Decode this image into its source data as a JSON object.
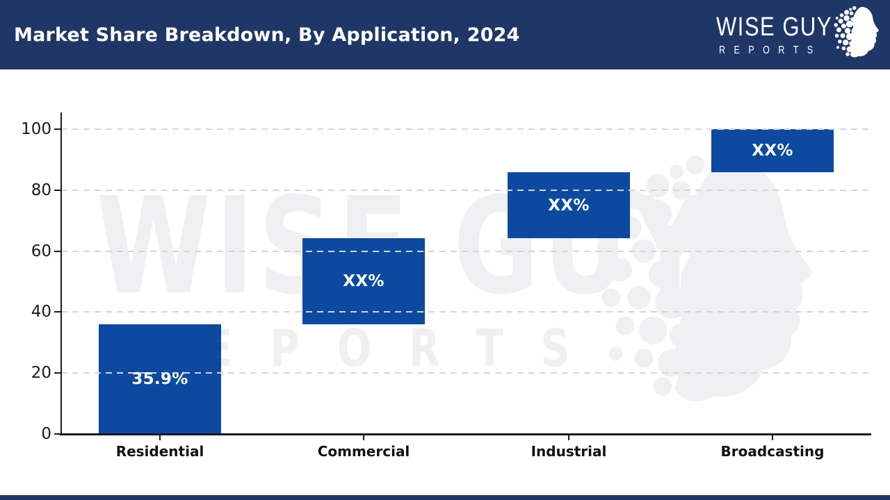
{
  "header": {
    "title": "Market Share Breakdown, By Application, 2024",
    "logo": {
      "wordmark": "WISE GUY",
      "subtitle": "REPORTS"
    }
  },
  "watermark": {
    "wordmark": "WISE GUY",
    "subtitle": "REPORTS"
  },
  "colors": {
    "header_bg": "#1f3766",
    "footer_bg": "#1f3766",
    "bar": "#0b4aa0",
    "bar_label_text": "#ffffff",
    "grid": "#d5d5d5",
    "axis": "#1a1a1a",
    "watermark": "#f0f0f3",
    "title_text": "#ffffff"
  },
  "chart_data": {
    "type": "bar",
    "subtype": "waterfall",
    "title": "Market Share Breakdown, By Application, 2024",
    "categories": [
      "Residential",
      "Commercial",
      "Industrial",
      "Broadcasting"
    ],
    "segments": [
      {
        "category": "Residential",
        "start": 0,
        "end": 35.9,
        "label": "35.9%"
      },
      {
        "category": "Commercial",
        "start": 35.9,
        "end": 64.2,
        "label": "XX%"
      },
      {
        "category": "Industrial",
        "start": 64.2,
        "end": 85.9,
        "label": "XX%"
      },
      {
        "category": "Broadcasting",
        "start": 85.9,
        "end": 100,
        "label": "XX%"
      }
    ],
    "y_ticks": [
      0,
      20,
      40,
      60,
      80,
      100
    ],
    "ylim": [
      0,
      105
    ],
    "xlabel": "",
    "ylabel": "",
    "grid": "horizontal-dashed",
    "legend": "none"
  }
}
